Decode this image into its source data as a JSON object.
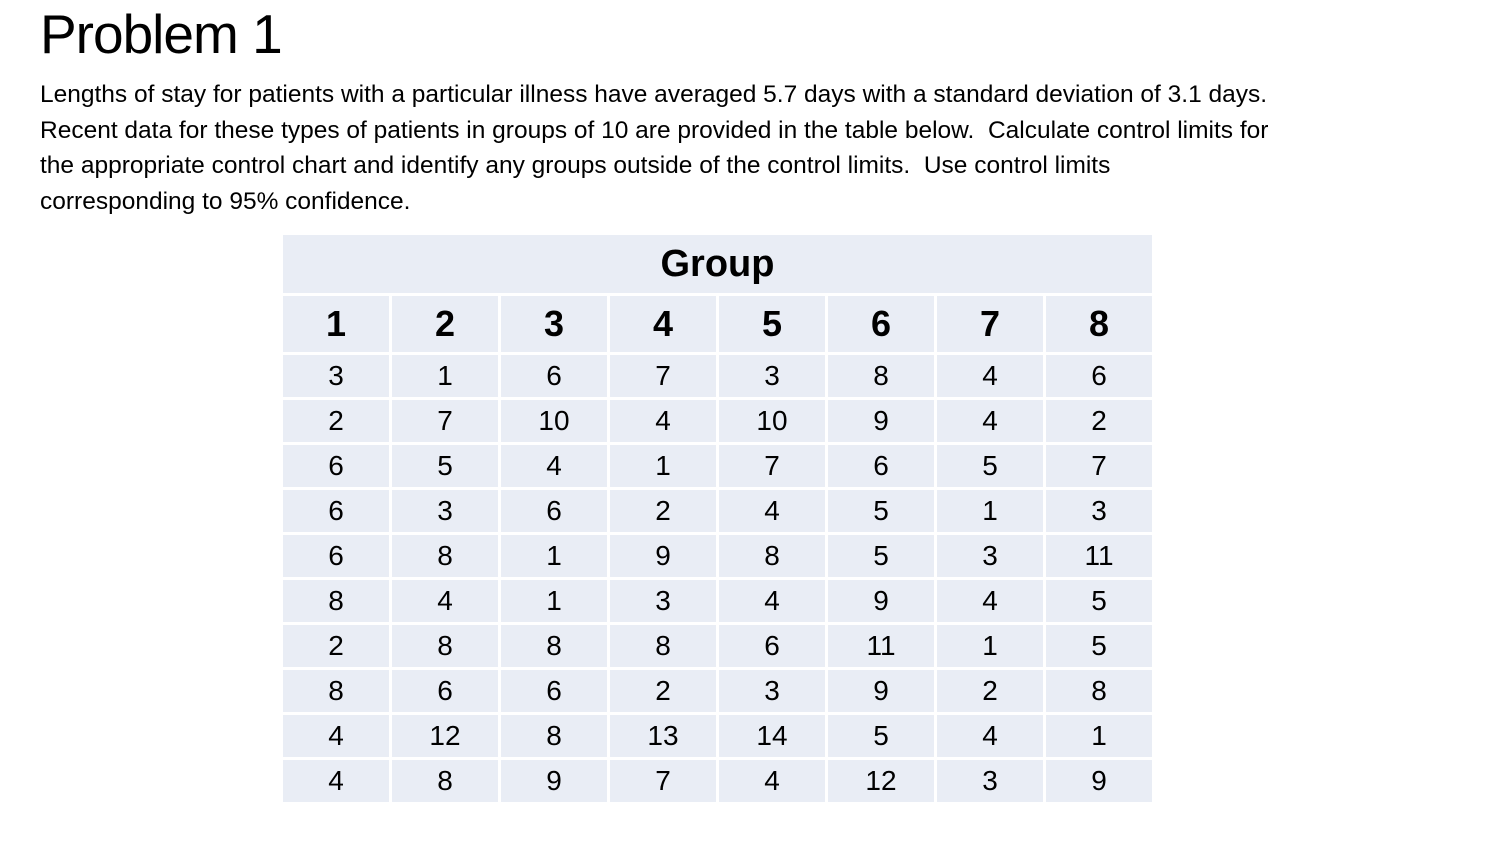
{
  "title": "Problem 1",
  "paragraph_lines": [
    "Lengths of stay for patients with a particular illness have averaged 5.7 days with a standard deviation of 3.1 days.",
    "Recent data for these types of patients in groups of 10 are provided in the table below.  Calculate control limits for",
    "the appropriate control chart and identify any groups outside of the control limits.  Use control limits",
    "corresponding to 95% confidence."
  ],
  "table": {
    "title": "Group",
    "column_headers": [
      "1",
      "2",
      "3",
      "4",
      "5",
      "6",
      "7",
      "8"
    ],
    "rows": [
      [
        3,
        1,
        6,
        7,
        3,
        8,
        4,
        6
      ],
      [
        2,
        7,
        10,
        4,
        10,
        9,
        4,
        2
      ],
      [
        6,
        5,
        4,
        1,
        7,
        6,
        5,
        7
      ],
      [
        6,
        3,
        6,
        2,
        4,
        5,
        1,
        3
      ],
      [
        6,
        8,
        1,
        9,
        8,
        5,
        3,
        11
      ],
      [
        8,
        4,
        1,
        3,
        4,
        9,
        4,
        5
      ],
      [
        2,
        8,
        8,
        8,
        6,
        11,
        1,
        5
      ],
      [
        8,
        6,
        6,
        2,
        3,
        9,
        2,
        8
      ],
      [
        4,
        12,
        8,
        13,
        14,
        5,
        4,
        1
      ],
      [
        4,
        8,
        9,
        7,
        4,
        12,
        3,
        9
      ]
    ],
    "colors": {
      "cell_background": "#E9EDF5",
      "grid_line": "#FFFFFF",
      "text": "#000000"
    }
  }
}
